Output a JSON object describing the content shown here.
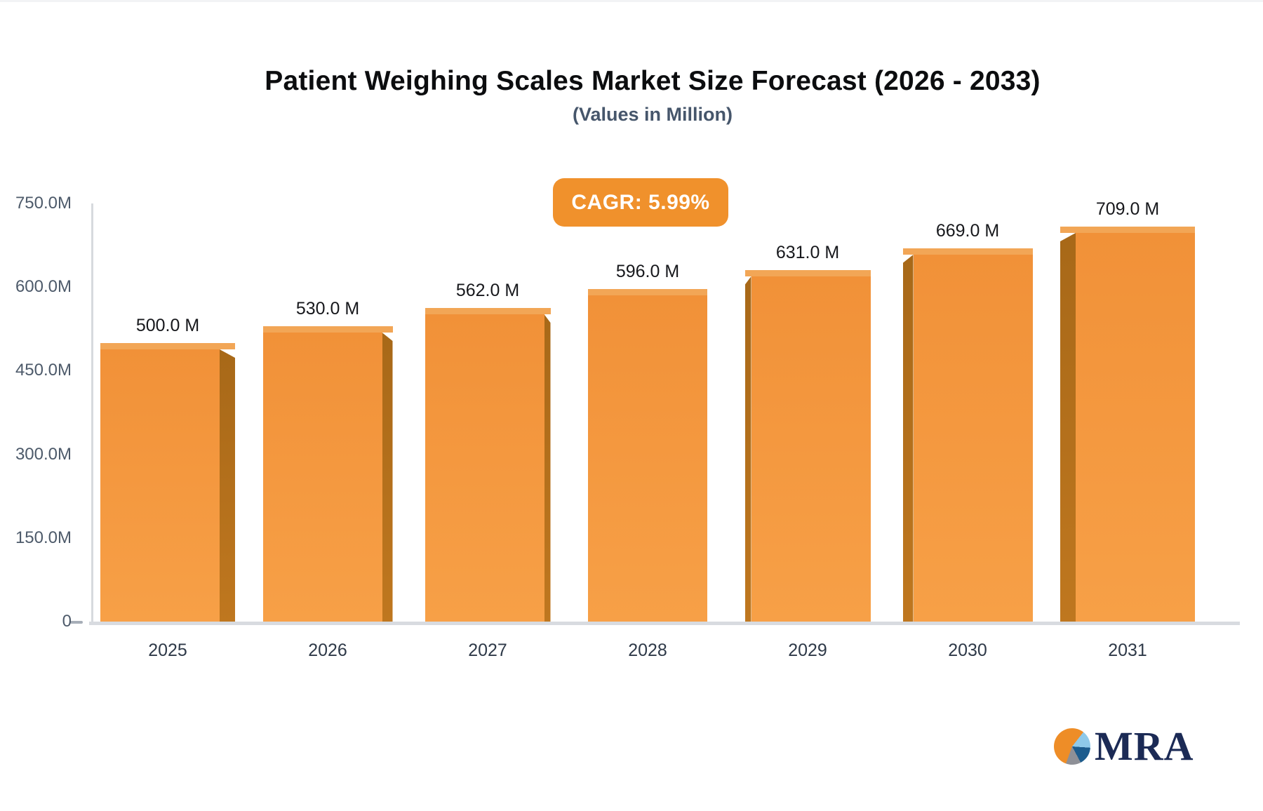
{
  "header": {
    "title": "Patient Weighing Scales Market Size Forecast (2026 - 2033)",
    "subtitle": "(Values in Million)"
  },
  "badge": {
    "label": "CAGR: 5.99%"
  },
  "chart_data": {
    "type": "bar",
    "title": "Patient Weighing Scales Market Size Forecast (2026 - 2033)",
    "subtitle": "(Values in Million)",
    "annotation": "CAGR: 5.99%",
    "categories": [
      "2025",
      "2026",
      "2027",
      "2028",
      "2029",
      "2030",
      "2031"
    ],
    "values": [
      500,
      530,
      562,
      596,
      631,
      669,
      709
    ],
    "bar_labels": [
      "500.0 M",
      "530.0 M",
      "562.0 M",
      "596.0 M",
      "631.0 M",
      "669.0 M",
      "709.0 M"
    ],
    "y_ticks": [
      {
        "label": "750.0M",
        "value": 750
      },
      {
        "label": "600.0M",
        "value": 600
      },
      {
        "label": "450.0M",
        "value": 450
      },
      {
        "label": "300.0M",
        "value": 300
      },
      {
        "label": "150.0M",
        "value": 150
      },
      {
        "label": "0",
        "value": 0
      }
    ],
    "ylim": [
      0,
      750
    ],
    "xlabel": "",
    "ylabel": "",
    "grid": false,
    "legend_position": "none",
    "units": "Million",
    "colors": {
      "bar_front": "#f49a40",
      "bar_top": "#f2a656",
      "bar_side": "#b06e1b",
      "badge_bg": "#f0912c",
      "axis_line": "#d7dade",
      "baseline": "#d8dbe0",
      "tick_text": "#4d5a6a",
      "category_text": "#2e3948",
      "value_text": "#17181c"
    }
  },
  "logo": {
    "text": "MRA",
    "pie_colors": [
      "#ee8d27",
      "#8fc9e9",
      "#1d5c8d",
      "#8e9097"
    ]
  }
}
